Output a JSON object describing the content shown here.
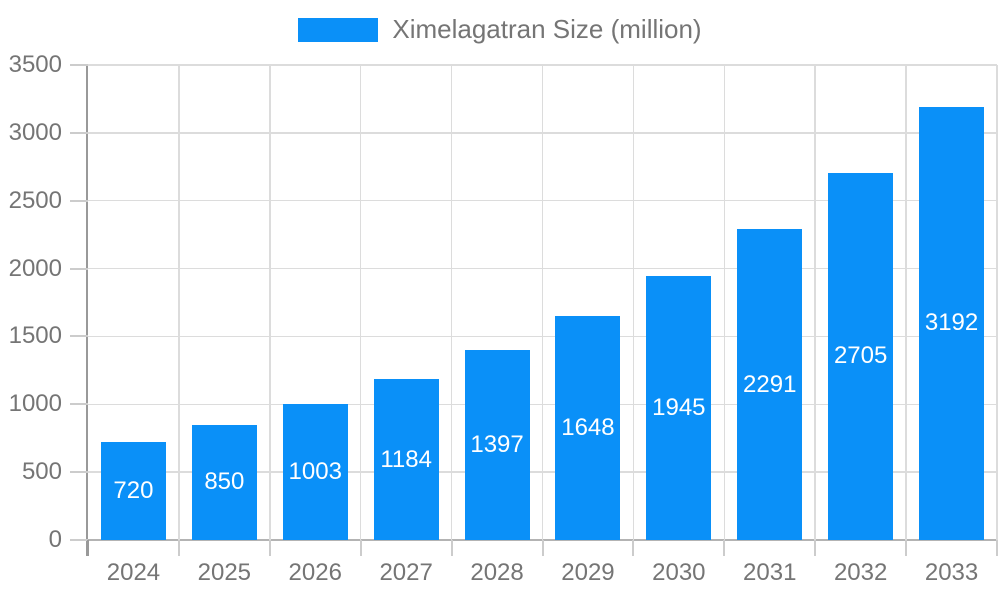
{
  "legend": {
    "label": "Ximelagatran Size (million)",
    "position": "top"
  },
  "chart_data": {
    "type": "bar",
    "title": "",
    "xlabel": "",
    "ylabel": "",
    "categories": [
      "2024",
      "2025",
      "2026",
      "2027",
      "2028",
      "2029",
      "2030",
      "2031",
      "2032",
      "2033"
    ],
    "series": [
      {
        "name": "Ximelagatran Size (million)",
        "values": [
          720,
          850,
          1003,
          1184,
          1397,
          1648,
          1945,
          2291,
          2705,
          3192
        ]
      }
    ],
    "value_labels_shown": true,
    "ylim": [
      0,
      3500
    ],
    "yticks": [
      0,
      500,
      1000,
      1500,
      2000,
      2500,
      3000,
      3500
    ],
    "grid": true,
    "legend_position": "top",
    "colors": {
      "bar": "#0a90f8",
      "value_label": "#ffffff",
      "tick_label": "#757575",
      "legend_text": "#757575",
      "gridline": "#dcdcdc",
      "axis_line": "#999999"
    }
  }
}
